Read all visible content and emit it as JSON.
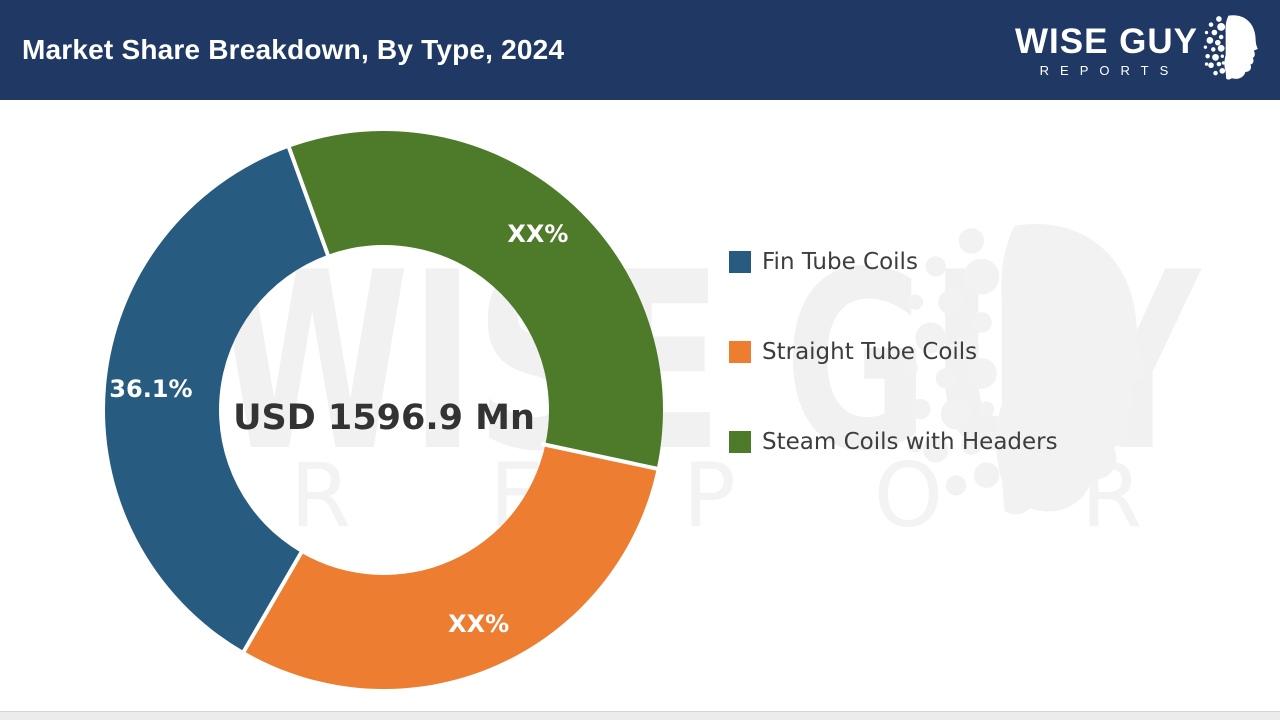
{
  "header": {
    "title": "Market Share Breakdown, By Type, 2024",
    "bg_color": "#203864",
    "logo": {
      "line1": "WISE GUY",
      "line2": "REPORTS"
    }
  },
  "watermark": {
    "line1": "WISE GUY",
    "line2": "REPORTS"
  },
  "chart_data": {
    "type": "donut",
    "title": "Market Share Breakdown, By Type, 2024",
    "center_label": "USD 1596.9 Mn",
    "units": "percent share",
    "start_angle_deg_clockwise_from_top": -19.9,
    "segments": [
      {
        "name": "Steam Coils with Headers",
        "pct": 33.9,
        "slice_label": "XX%",
        "color": "#4d7b2a"
      },
      {
        "name": "Straight Tube Coils",
        "pct": 30.0,
        "slice_label": "XX%",
        "color": "#ed7d31"
      },
      {
        "name": "Fin Tube Coils",
        "pct": 36.1,
        "slice_label": "36.1%",
        "color": "#275b80"
      }
    ],
    "legend": [
      {
        "label": "Fin Tube Coils",
        "color": "#275b80"
      },
      {
        "label": "Straight Tube Coils",
        "color": "#ed7d31"
      },
      {
        "label": "Steam Coils with Headers",
        "color": "#4d7b2a"
      }
    ],
    "legend_position": "right",
    "slice_label_color": "#ffffff",
    "center_label_color": "#333333"
  }
}
